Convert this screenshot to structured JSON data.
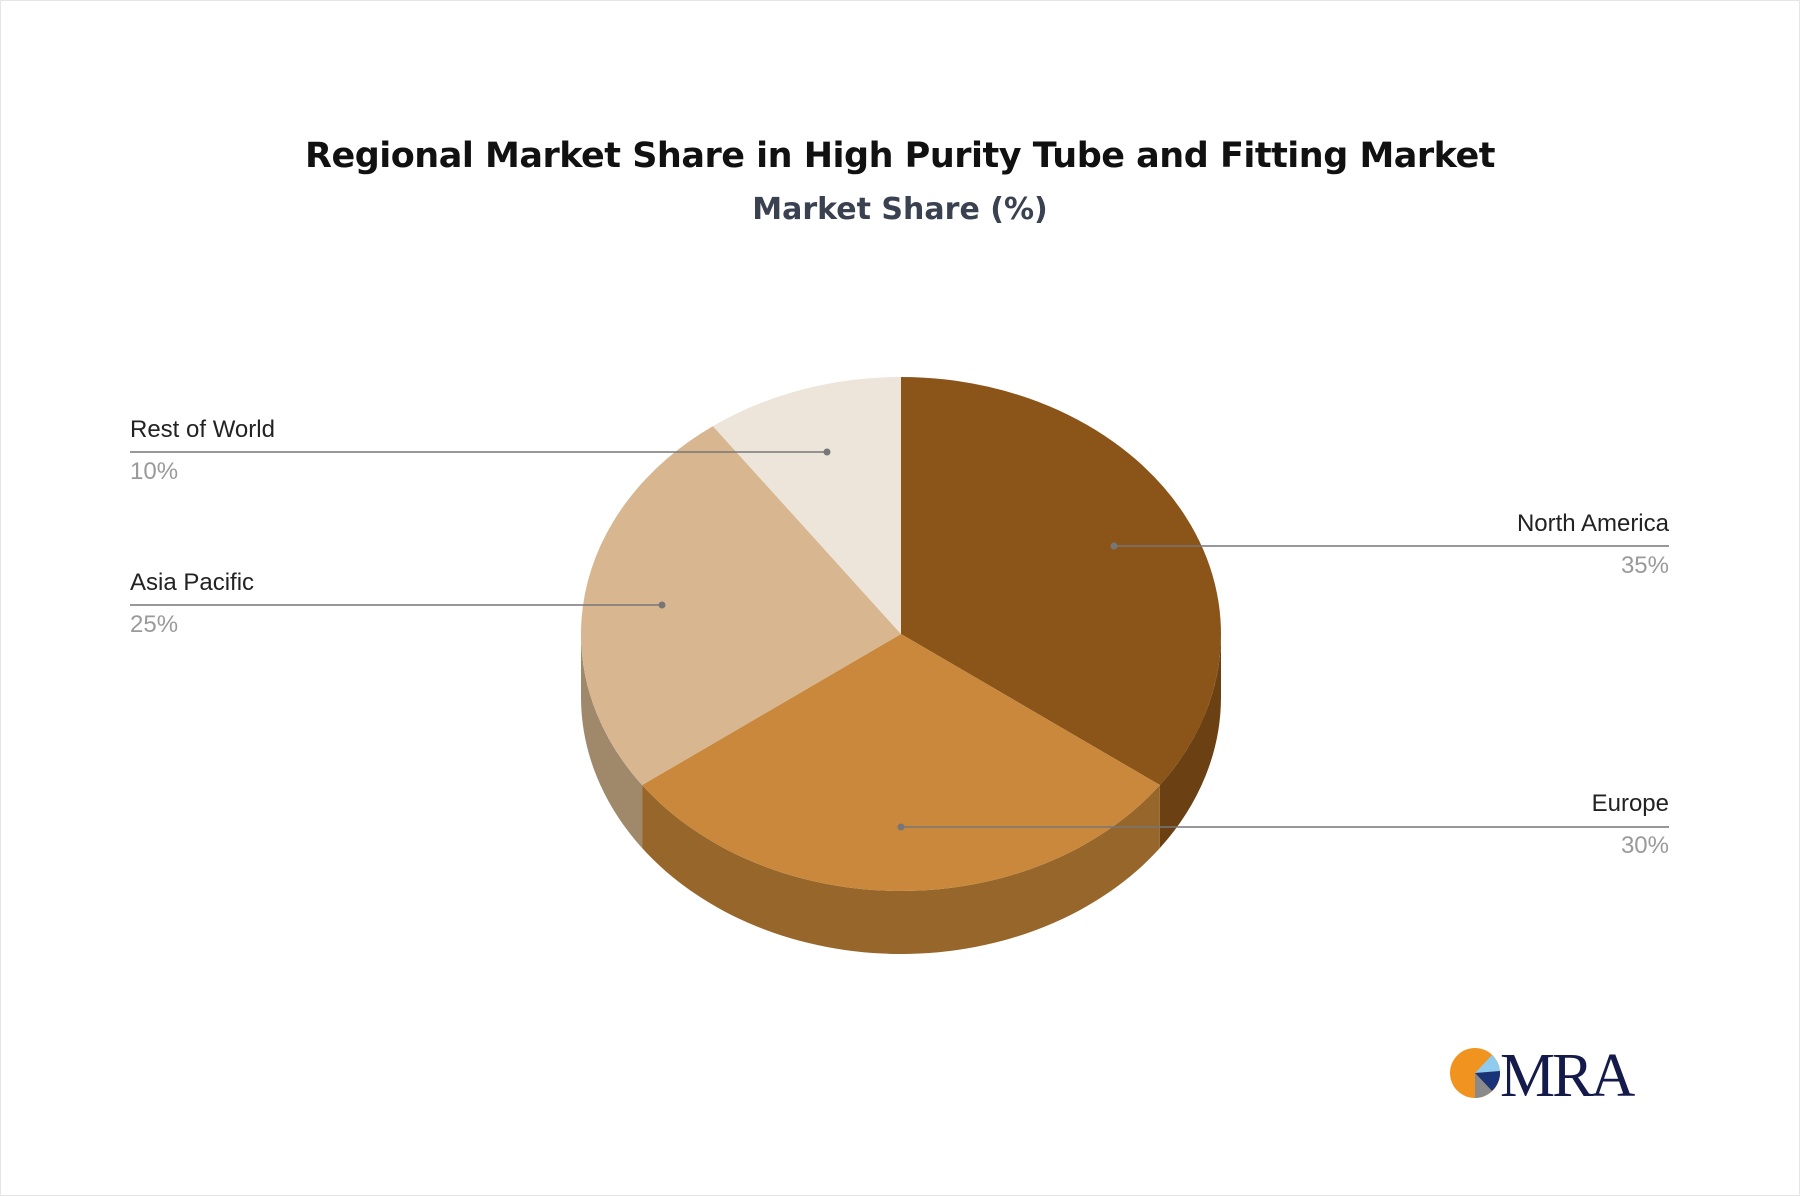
{
  "chart_data": {
    "type": "pie",
    "title": "Regional Market Share in High Purity Tube and Fitting Market",
    "subtitle": "Market Share (%)",
    "style": "3d",
    "slices": [
      {
        "label": "North America",
        "value": 35,
        "display": "35%",
        "color": "#8b5519",
        "side_color": "#6b4113"
      },
      {
        "label": "Europe",
        "value": 30,
        "display": "30%",
        "color": "#c9883b",
        "side_color": "#96662b"
      },
      {
        "label": "Asia Pacific",
        "value": 25,
        "display": "25%",
        "color": "#d7b690",
        "side_color": "#a0886b"
      },
      {
        "label": "Rest of World",
        "value": 10,
        "display": "10%",
        "color": "#ede4da",
        "side_color": "#bdb3a8"
      }
    ]
  },
  "logo": {
    "text": "MRA"
  }
}
